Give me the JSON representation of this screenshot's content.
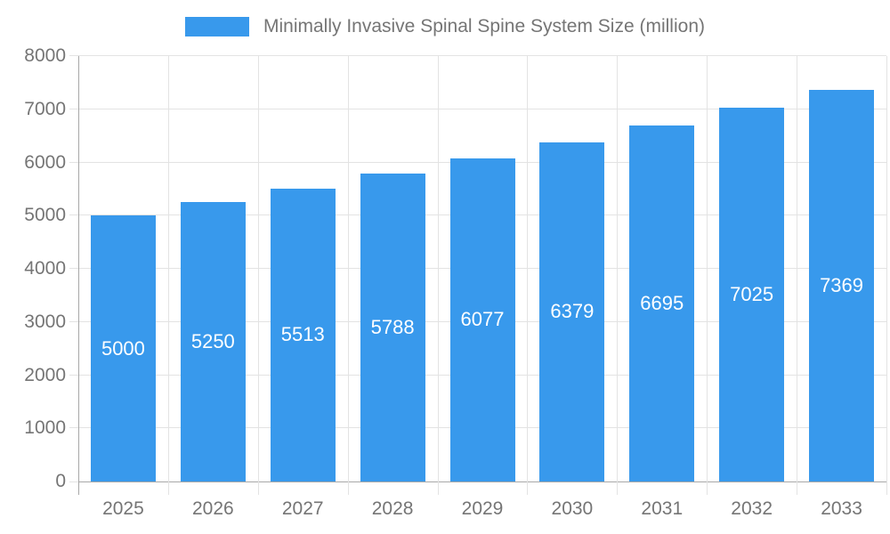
{
  "legend": {
    "label": "Minimally Invasive Spinal Spine System Size (million)"
  },
  "chart_data": {
    "type": "bar",
    "title": "Minimally Invasive Spinal Spine System Size (million)",
    "series_name": "Minimally Invasive Spinal Spine System Size (million)",
    "categories": [
      "2025",
      "2026",
      "2027",
      "2028",
      "2029",
      "2030",
      "2031",
      "2032",
      "2033"
    ],
    "values": [
      5000,
      5250,
      5513,
      5788,
      6077,
      6379,
      6695,
      7025,
      7369
    ],
    "value_labels": [
      "5000",
      "5250",
      "5513",
      "5788",
      "6077",
      "6379",
      "6695",
      "7025",
      "7369"
    ],
    "xlabel": "",
    "ylabel": "",
    "ylim": [
      0,
      8000
    ],
    "yticks": [
      0,
      1000,
      2000,
      3000,
      4000,
      5000,
      6000,
      7000,
      8000
    ],
    "ytick_labels": [
      "0",
      "1000",
      "2000",
      "3000",
      "4000",
      "5000",
      "6000",
      "7000",
      "8000"
    ],
    "grid": true,
    "legend_position": "top-center",
    "colors": {
      "bar": "#3899ec",
      "value_label": "#ffffff",
      "tick_label": "#757575",
      "gridline": "#e3e3e3",
      "axis_line": "#a8a8a8",
      "background": "#ffffff"
    }
  }
}
